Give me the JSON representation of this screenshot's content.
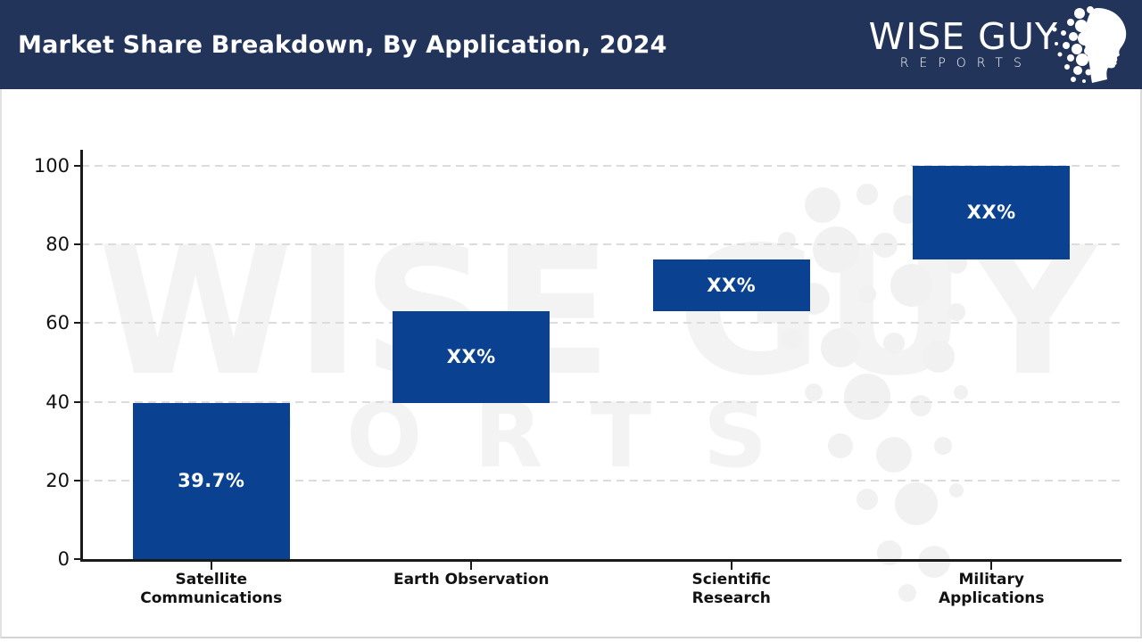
{
  "header": {
    "title": "Market Share Breakdown, By Application, 2024",
    "bg_color": "#22345a",
    "logo": {
      "wordmark": "WISE GUY",
      "subtext": "REPORTS"
    }
  },
  "watermark": {
    "line1": "WISE GUY",
    "line2": "PORTS"
  },
  "chart_data": {
    "type": "bar",
    "subtype": "waterfall",
    "title": "Market Share Breakdown, By Application, 2024",
    "xlabel": "",
    "ylabel": "",
    "ylim": [
      0,
      100
    ],
    "yticks": [
      0,
      20,
      40,
      60,
      80,
      100
    ],
    "grid": "horizontal-dashed",
    "legend": "none",
    "bar_color": "#0a4291",
    "categories": [
      "Satellite Communications",
      "Earth Observation",
      "Scientific Research",
      "Military Applications"
    ],
    "segments": [
      {
        "label": "Satellite Communications",
        "label_lines": [
          "Satellite",
          "Communications"
        ],
        "start": 0,
        "end": 39.7,
        "height": 39.7,
        "value_label": "39.7%"
      },
      {
        "label": "Earth Observation",
        "label_lines": [
          "Earth Observation"
        ],
        "start": 39.7,
        "end": 63.1,
        "height": 23.4,
        "value_label": "XX%"
      },
      {
        "label": "Scientific Research",
        "label_lines": [
          "Scientific",
          "Research"
        ],
        "start": 63.1,
        "end": 76.2,
        "height": 13.1,
        "value_label": "XX%"
      },
      {
        "label": "Military Applications",
        "label_lines": [
          "Military",
          "Applications"
        ],
        "start": 76.2,
        "end": 100,
        "height": 23.8,
        "value_label": "XX%"
      }
    ]
  }
}
